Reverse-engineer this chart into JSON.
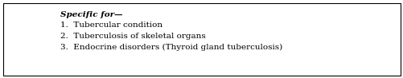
{
  "title": "Specific for—",
  "items": [
    "1.  Tubercular condition",
    "2.  Tuberculosis of skeletal organs",
    "3.  Endocrine disorders (Thyroid gland tuberculosis)"
  ],
  "background_color": "#ffffff",
  "border_color": "#000000",
  "text_color": "#000000",
  "title_fontsize": 7.5,
  "body_fontsize": 7.5,
  "fig_width": 5.02,
  "fig_height": 0.98
}
